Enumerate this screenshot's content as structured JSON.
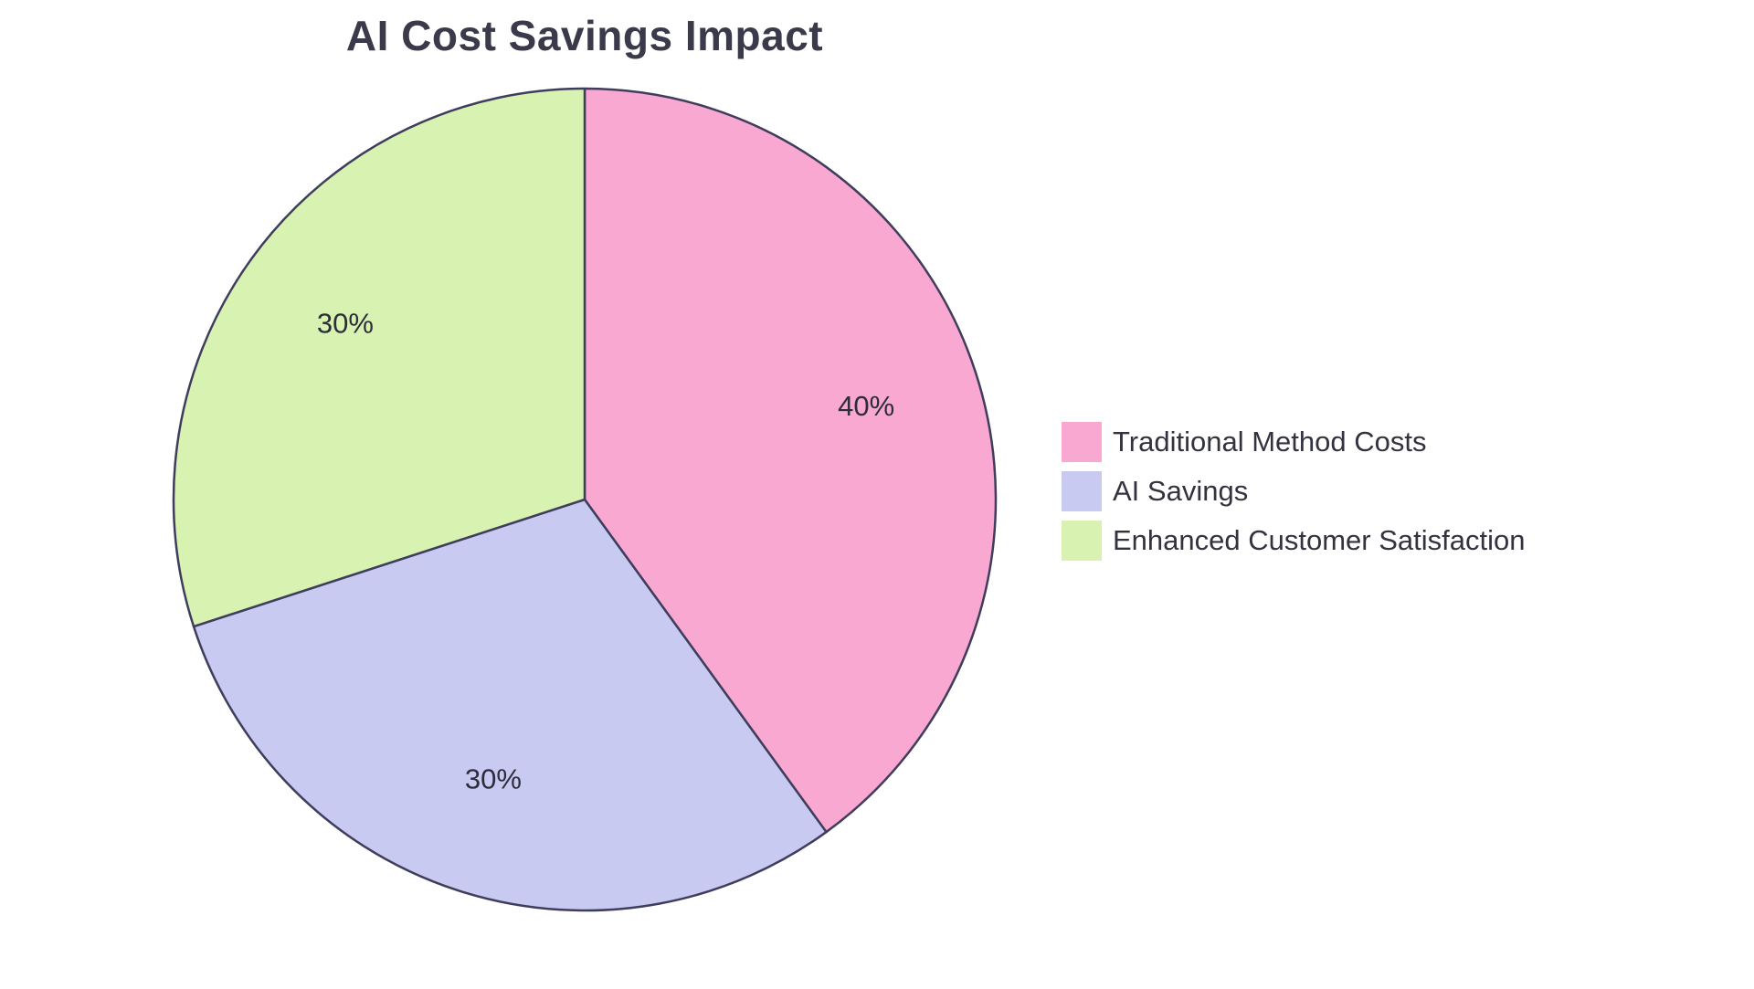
{
  "chart_data": {
    "type": "pie",
    "title": "AI Cost Savings Impact",
    "labels": [
      "Traditional Method Costs",
      "AI Savings",
      "Enhanced Customer Satisfaction"
    ],
    "values": [
      40,
      30,
      30
    ],
    "slice_labels": [
      "40%",
      "30%",
      "30%"
    ],
    "colors": [
      "#f9a8d2",
      "#c9caf2",
      "#d8f2b2"
    ],
    "stroke_color": "#3f3d5c",
    "start_angle_deg": 0,
    "direction": "clockwise",
    "legend_position": "right",
    "label_position": "inside"
  }
}
